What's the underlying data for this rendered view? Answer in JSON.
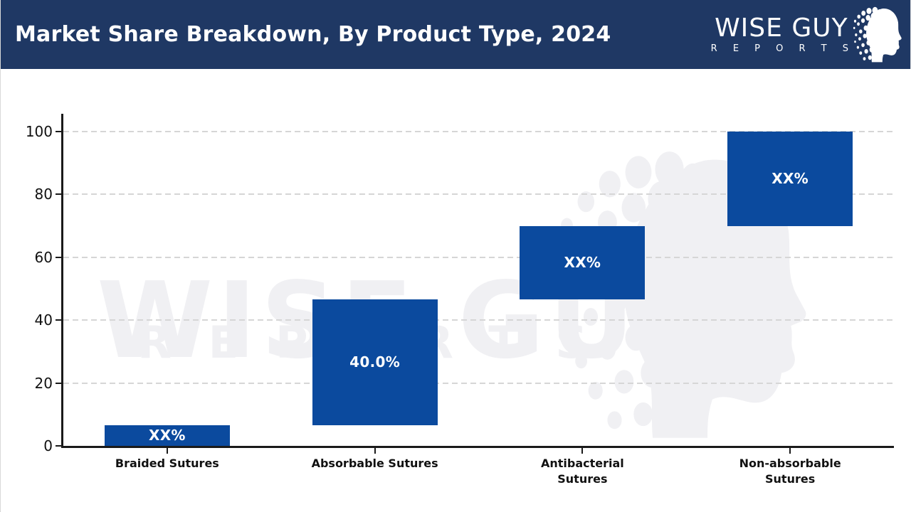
{
  "header": {
    "logo": {
      "line1": "WISE GUY",
      "line2": "R E P O R T S"
    }
  },
  "watermark": {
    "line1": "WISE GUY",
    "line2": "REPORTS"
  },
  "chart_data": {
    "type": "bar",
    "subtype": "waterfall",
    "title": "Market Share Breakdown, By Product Type, 2024",
    "categories": [
      "Braided Sutures",
      "Absorbable Sutures",
      "Antibacterial\nSutures",
      "Non-absorbable\nSutures"
    ],
    "series": [
      {
        "name": "Market Share (%)",
        "starts": [
          0,
          6.6,
          46.6,
          70.0
        ],
        "values": [
          6.6,
          40.0,
          23.4,
          30.0
        ]
      }
    ],
    "bar_labels": [
      "XX%",
      "40.0%",
      "XX%",
      "XX%"
    ],
    "xlabel": "",
    "ylabel": "",
    "yticks": [
      0,
      20,
      40,
      60,
      80,
      100
    ],
    "ylim": [
      0,
      105
    ],
    "grid": "horizontal-dashed",
    "legend": "none",
    "colors": {
      "bar": "#0b4a9e",
      "header_bg": "#1f3864",
      "gridline": "#d6d6d6",
      "axis": "#1a1a1a",
      "watermark": "#f0f0f3",
      "bar_label_text": "#ffffff",
      "title_text": "#ffffff"
    }
  }
}
